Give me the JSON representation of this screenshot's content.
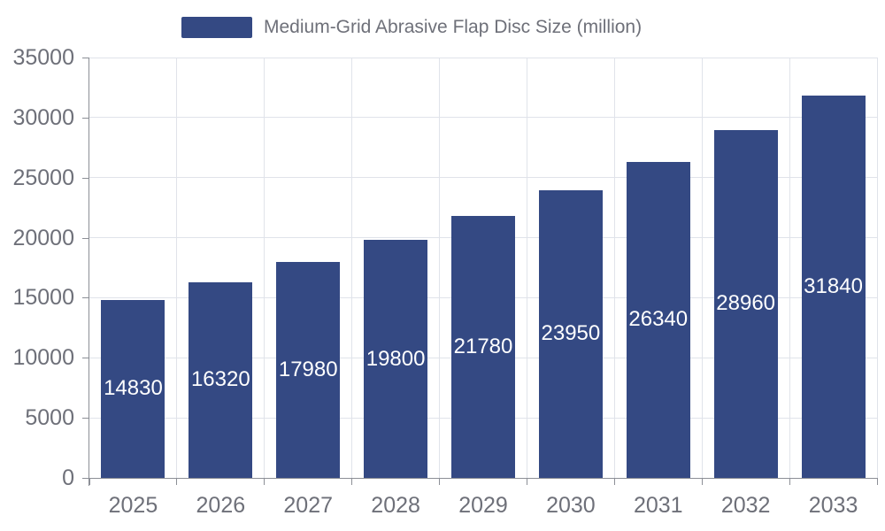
{
  "chart_data": {
    "type": "bar",
    "title": "Medium-Grid Abrasive Flap Disc Size (million)",
    "categories": [
      "2025",
      "2026",
      "2027",
      "2028",
      "2029",
      "2030",
      "2031",
      "2032",
      "2033"
    ],
    "series": [
      {
        "name": "Medium-Grid Abrasive Flap Disc Size (million)",
        "values": [
          14830,
          16320,
          17980,
          19800,
          21780,
          23950,
          26340,
          28960,
          31840
        ]
      }
    ],
    "xlabel": "",
    "ylabel": "",
    "ylim": [
      0,
      35000
    ],
    "yticks": [
      0,
      5000,
      10000,
      15000,
      20000,
      25000,
      30000,
      35000
    ],
    "grid": true,
    "legend_position": "top-center",
    "bar_labels_visible": true,
    "colors": {
      "bar": "#344983",
      "bar_label": "#ffffff",
      "axis_line": "#8c8f96",
      "tick_label": "#6e7079",
      "legend_text": "#6e7079",
      "gridline": "#e0e3ea",
      "background": "#ffffff"
    }
  }
}
